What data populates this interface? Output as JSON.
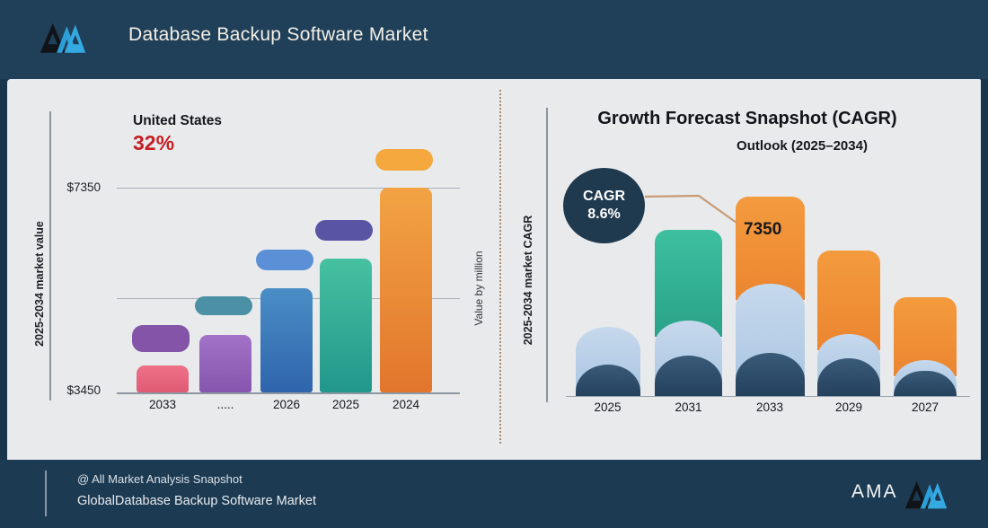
{
  "header": {
    "title": "Database Backup Software Market",
    "logo": "AMA"
  },
  "middle_label": "Value by million",
  "footer": {
    "line1": "@ All Market Analysis Snapshot",
    "line2": "GlobalDatabase Backup Software Market",
    "brand": "AMA"
  },
  "colors": {
    "header_bg": "#20405a",
    "footer_bg": "#1c3a52",
    "content_bg": "#e9eaec",
    "accent_red": "#c51e24",
    "badge_navy": "#1f3a4e",
    "connector_tan": "#c89b74",
    "logo_black": "#101418",
    "logo_blue": "#2c9fd8"
  },
  "chart_data": [
    {
      "type": "bar",
      "title": "United States",
      "annotation": "32%",
      "ylabel": "2025-2034 market value",
      "categories": [
        "2033",
        ".....",
        "2026",
        "2025",
        "2024"
      ],
      "values": [
        3960,
        4540,
        5445,
        6010,
        7350
      ],
      "floating_caps": [
        {
          "from": 4220,
          "to": 4730
        },
        {
          "from": 4920,
          "to": 5290
        },
        {
          "from": 5770,
          "to": 6180
        },
        {
          "from": 6350,
          "to": 6740
        },
        {
          "from": 7680,
          "to": 8090
        }
      ],
      "bar_colors": [
        [
          "#ee7288",
          "#df5b73"
        ],
        [
          "#a273c8",
          "#8655ad"
        ],
        [
          "#4a8ec6",
          "#2f64ac"
        ],
        [
          "#46c1a1",
          "#21968b"
        ],
        [
          "#f2a344",
          "#e2762c"
        ]
      ],
      "cap_colors": [
        "#8454a8",
        "#4b90a4",
        "#5b8fd6",
        "#5a54a4",
        "#f4a83e"
      ],
      "yticks": [
        {
          "label": "$3450",
          "value": 3450
        },
        {
          "label": "$7350",
          "value": 7350
        }
      ],
      "gridlines": [
        7350,
        5250
      ],
      "ylim": [
        3450,
        8090
      ],
      "legend": false
    },
    {
      "type": "stacked_bar",
      "title": "Growth Forecast Snapshot (CAGR)",
      "subtitle": "Outlook (2025–2034)",
      "ylabel": "2025-2034 market CAGR",
      "categories": [
        "2025",
        "2031",
        "2033",
        "2029",
        "2027"
      ],
      "series": [
        {
          "name": "base",
          "values": [
            1150,
            1490,
            1590,
            1380,
            940
          ]
        },
        {
          "name": "mid",
          "values": [
            1400,
            1290,
            2550,
            910,
            380
          ]
        },
        {
          "name": "top",
          "values": [
            0,
            3340,
            3210,
            3080,
            2310
          ]
        }
      ],
      "totals": [
        2550,
        6120,
        7350,
        5370,
        3630
      ],
      "top_segment_style": [
        null,
        "teal",
        "orange",
        "orange",
        "orange"
      ],
      "segment_colors": {
        "base": [
          "#3a5b79",
          "#24415d"
        ],
        "mid": [
          "#c6d8ec",
          "#a9c6e2"
        ],
        "teal": [
          "#3ec0a0",
          "#28a288"
        ],
        "orange": [
          "#f49b3e",
          "#ec8530"
        ]
      },
      "data_label": {
        "category": "2033",
        "text": "7350"
      },
      "badge": {
        "line1": "CAGR",
        "line2": "8.6%"
      },
      "ylim": [
        0,
        7350
      ],
      "legend": false
    }
  ]
}
